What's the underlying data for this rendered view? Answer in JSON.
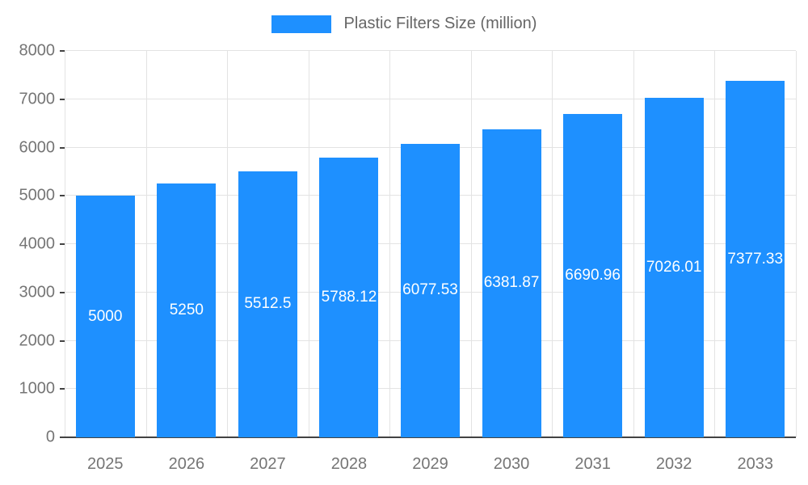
{
  "chart_data": {
    "type": "bar",
    "title": "Plastic Filters Size (million)",
    "categories": [
      "2025",
      "2026",
      "2027",
      "2028",
      "2029",
      "2030",
      "2031",
      "2032",
      "2033"
    ],
    "values": [
      5000,
      5250,
      5512.5,
      5788.12,
      6077.53,
      6381.87,
      6690.96,
      7026.01,
      7377.33
    ],
    "value_labels": [
      "5000",
      "5250",
      "5512.5",
      "5788.12",
      "6077.53",
      "6381.87",
      "6690.96",
      "7026.01",
      "7377.33"
    ],
    "xlabel": "",
    "ylabel": "",
    "ylim": [
      0,
      8000
    ],
    "ytick_step": 1000,
    "ytick_labels": [
      "0",
      "1000",
      "2000",
      "3000",
      "4000",
      "5000",
      "6000",
      "7000",
      "8000"
    ],
    "grid": true,
    "legend_position": "top",
    "colors": {
      "bar": "#1e90ff",
      "bar_value_text": "#ffffff",
      "axis_text": "#757575",
      "legend_text": "#666666",
      "gridline": "#e3e3e3",
      "axis_line": "#424242",
      "background": "#ffffff"
    }
  }
}
